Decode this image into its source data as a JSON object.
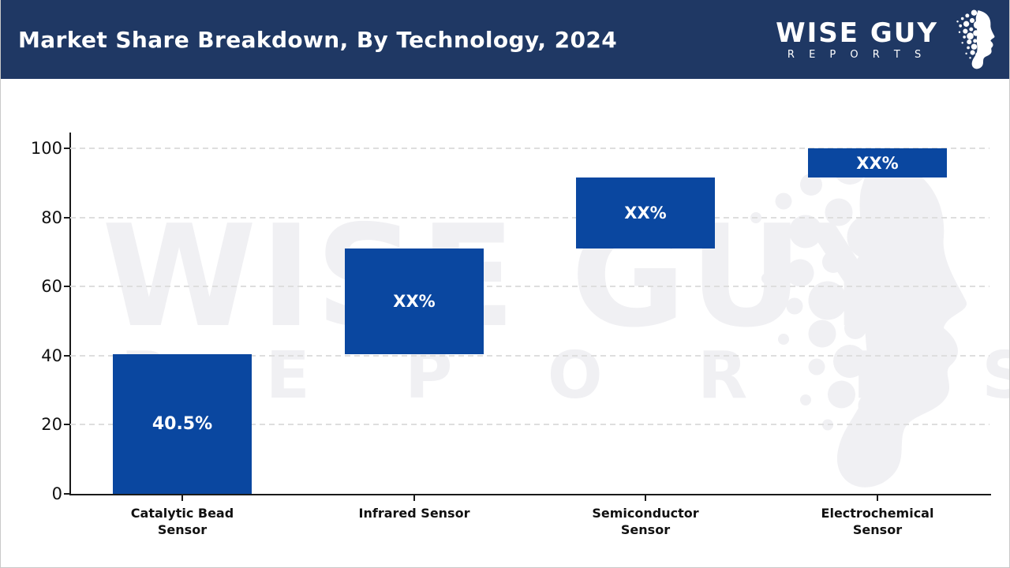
{
  "header": {
    "title": "Market Share Breakdown, By Technology, 2024",
    "bg_color": "#1f3864",
    "logo": {
      "line1": "WISE GUY",
      "line2": "R E P O R T S",
      "head_icon": "dotted-head-profile"
    }
  },
  "watermark": {
    "line1": "WISE GUY",
    "line2": "R E P O R T S",
    "color": "#f0f0f3"
  },
  "chart_data": {
    "type": "bar",
    "subtype": "waterfall",
    "title": "Market Share Breakdown, By Technology, 2024",
    "xlabel": "",
    "ylabel": "",
    "categories": [
      "Catalytic Bead\nSensor",
      "Infrared Sensor",
      "Semiconductor\nSensor",
      "Electrochemical\nSensor"
    ],
    "segments": [
      {
        "base": 0,
        "top": 40.5,
        "label": "40.5%"
      },
      {
        "base": 40.5,
        "top": 71,
        "label": "XX%"
      },
      {
        "base": 71,
        "top": 91.5,
        "label": "XX%"
      },
      {
        "base": 91.5,
        "top": 100,
        "label": "XX%"
      }
    ],
    "ylim": [
      0,
      100
    ],
    "yticks": [
      0,
      20,
      40,
      60,
      80,
      100
    ],
    "grid": "horizontal-dashed",
    "legend": "none",
    "bar_color": "#0a47a0",
    "bar_label_color": "#ffffff"
  }
}
